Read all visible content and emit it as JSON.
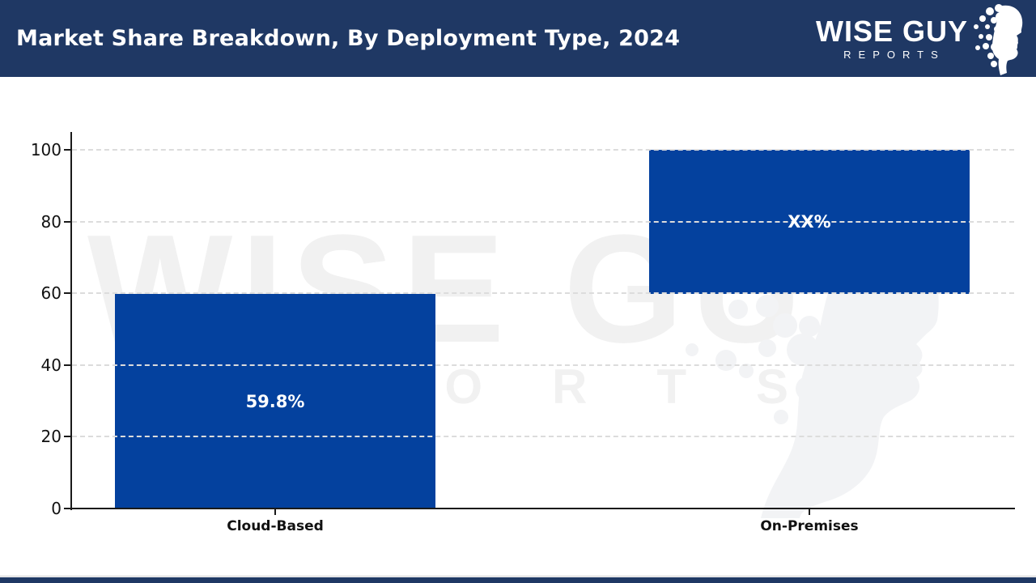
{
  "header": {
    "title": "Market Share Breakdown, By Deployment Type, 2024",
    "logo_line1": "WISE GUY",
    "logo_line2": "REPORTS"
  },
  "watermark": {
    "line1": "WISE GUY",
    "line2": "REPORTS"
  },
  "colors": {
    "header_bg": "#1f3864",
    "footer_bg": "#1f3864",
    "bar": "#04419e",
    "grid": "#dcdcdc",
    "axis": "#1a1a1a",
    "watermark": "#f1f1f1"
  },
  "chart_data": {
    "type": "bar",
    "title": "Market Share Breakdown, By Deployment Type, 2024",
    "categories": [
      "Cloud-Based",
      "On-Premises"
    ],
    "bars": [
      {
        "category": "Cloud-Based",
        "base": 0,
        "value": 59.8,
        "top": 59.8,
        "label": "59.8%"
      },
      {
        "category": "On-Premises",
        "base": 59.8,
        "value": 40.2,
        "top": 100,
        "label": "XX%"
      }
    ],
    "yticks": [
      0,
      20,
      40,
      60,
      80,
      100
    ],
    "ylim": [
      0,
      105
    ],
    "xlabel": "",
    "ylabel": "",
    "grid": "horizontal dashed",
    "legend": "none",
    "bar_color": "#04419e"
  }
}
